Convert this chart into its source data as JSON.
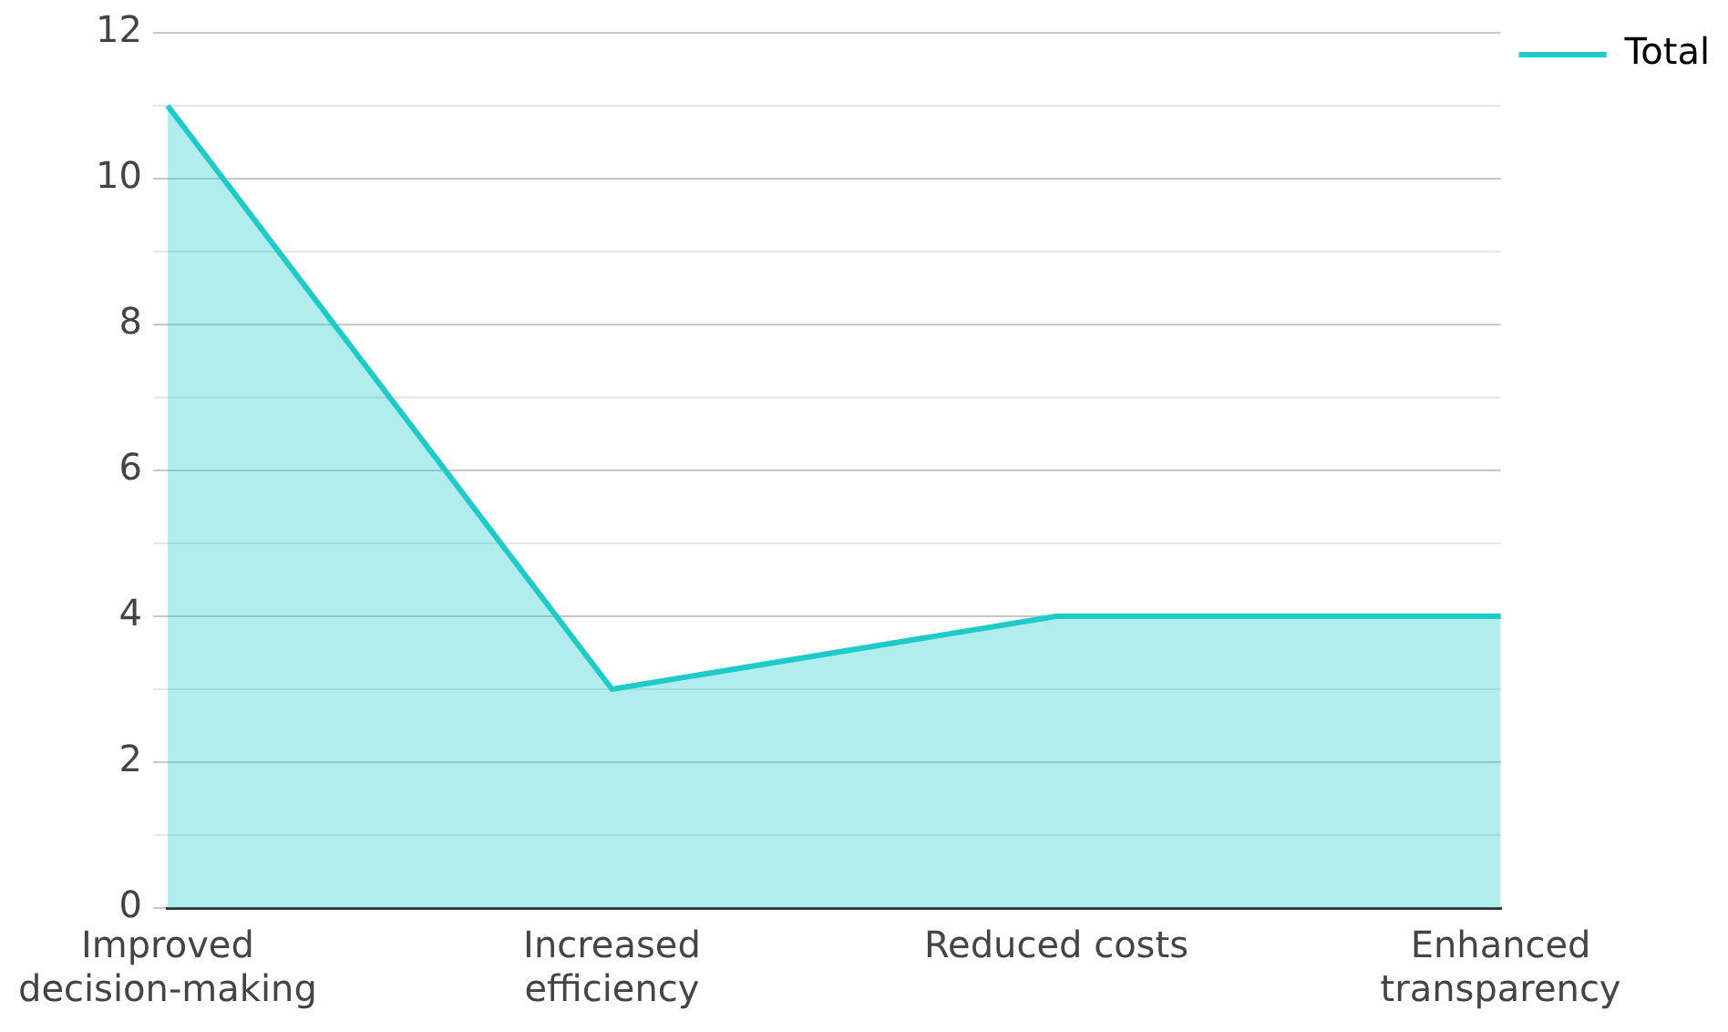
{
  "chart_data": {
    "type": "area",
    "categories": [
      "Improved decision-making",
      "Increased efficiency",
      "Reduced costs",
      "Enhanced transparency"
    ],
    "series": [
      {
        "name": "Total",
        "color": "#1ecbc9",
        "values": [
          11,
          3,
          4,
          4
        ]
      }
    ],
    "ylim": [
      0,
      12
    ],
    "yticks": [
      0,
      {
        "value": 1,
        "label": null
      },
      2,
      {
        "value": 3,
        "label": null
      },
      4,
      {
        "value": 5,
        "label": null
      },
      6,
      {
        "value": 7,
        "label": null
      },
      8,
      {
        "value": 9,
        "label": null
      },
      10,
      {
        "value": 11,
        "label": null
      },
      12
    ],
    "grid": "y",
    "legend": "top right"
  }
}
